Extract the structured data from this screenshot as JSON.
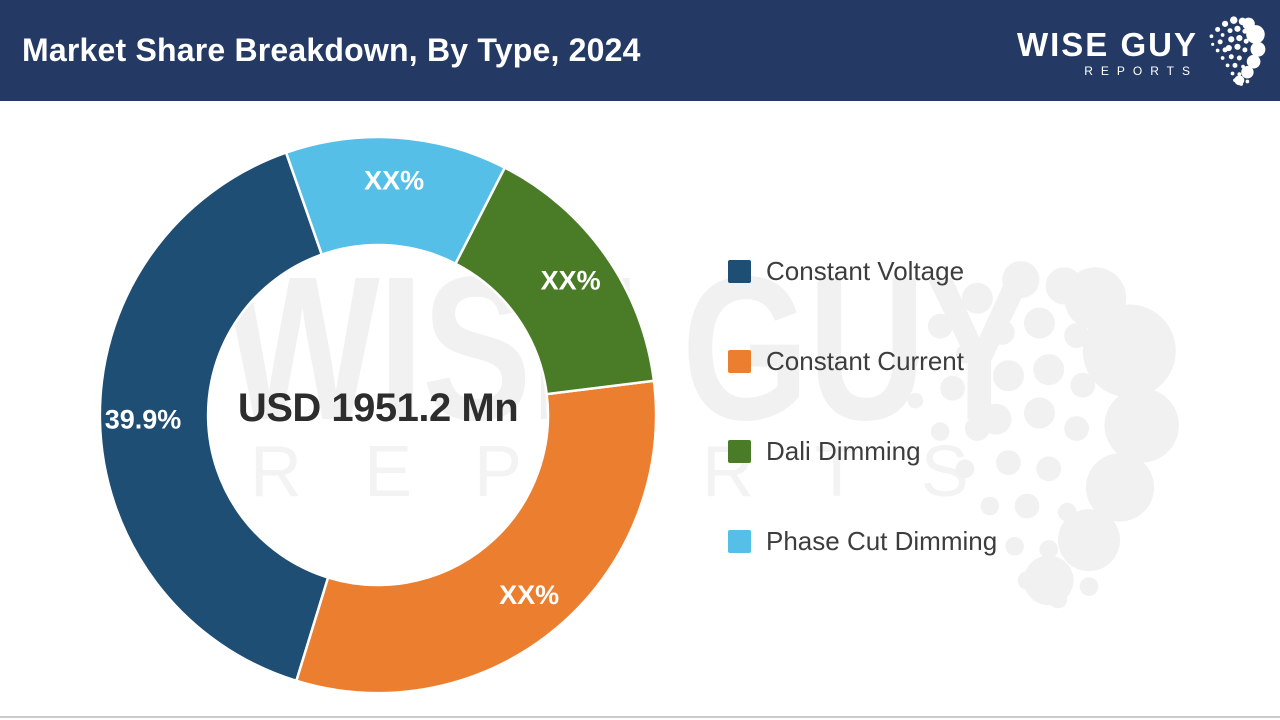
{
  "header": {
    "title": "Market Share Breakdown, By Type, 2024",
    "bg_color": "#243A65",
    "logo": {
      "line1": "WISE GUY",
      "line2": "REPORTS"
    }
  },
  "watermark": {
    "line1": "WISE GUY",
    "line2": "REPORTS"
  },
  "chart_data": {
    "type": "pie",
    "subtype": "donut",
    "title": "Market Share Breakdown, By Type, 2024",
    "center_value": "USD 1951.2 Mn",
    "start_angle_deg": 109.3,
    "direction": "counterclockwise",
    "legend_position": "right",
    "segments": [
      {
        "label": "Constant Voltage",
        "value_pct": 39.9,
        "display_label": "39.9%",
        "color": "#1E4E74"
      },
      {
        "label": "Constant Current",
        "value_pct": 31.7,
        "display_label": "XX%",
        "color": "#EC7E30"
      },
      {
        "label": "Dali Dimming",
        "value_pct": 15.5,
        "display_label": "XX%",
        "color": "#4A7C28"
      },
      {
        "label": "Phase Cut Dimming",
        "value_pct": 12.9,
        "display_label": "XX%",
        "color": "#55BFE7"
      }
    ]
  },
  "colors": {
    "header_bg": "#243A65",
    "watermark": "#f1f1f1",
    "legend_text": "#3d3d3d",
    "center_text": "#2d2d2d",
    "footer_line": "#cacaca"
  }
}
